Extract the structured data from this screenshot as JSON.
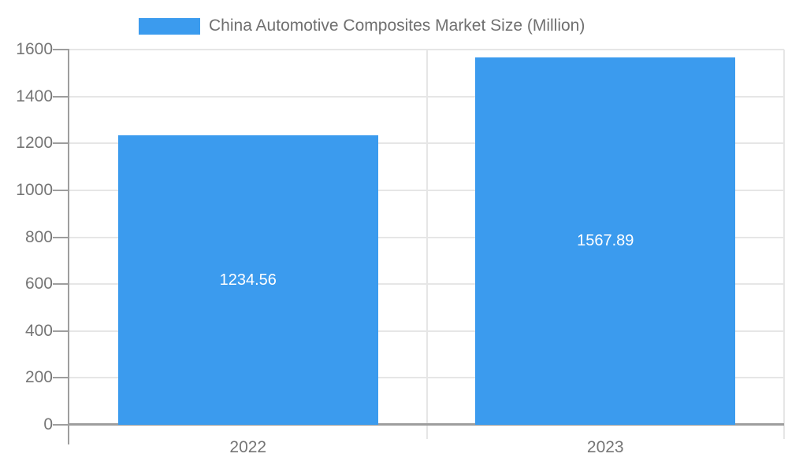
{
  "legend": {
    "label": "China Automotive Composites Market Size (Million)"
  },
  "chart_data": {
    "type": "bar",
    "title": "China Automotive Composites Market Size (Million)",
    "legend_position": "top",
    "categories": [
      "2022",
      "2023"
    ],
    "series": [
      {
        "name": "China Automotive Composites Market Size (Million)",
        "values": [
          1234.56,
          1567.89
        ]
      }
    ],
    "value_labels": [
      "1234.56",
      "1567.89"
    ],
    "xlabel": "",
    "ylabel": "",
    "ylim": [
      0,
      1600
    ],
    "ytick_interval": 200,
    "ytick_labels": [
      "0",
      "200",
      "400",
      "600",
      "800",
      "1000",
      "1200",
      "1400",
      "1600"
    ],
    "grid": true,
    "colors": {
      "bar": "#3B9BEE",
      "grid_line": "#e6e6e6",
      "axis_line": "#9e9e9e",
      "tick_text": "#757575",
      "legend_text": "#707070",
      "value_label_text": "#ffffff",
      "background": "#ffffff"
    }
  }
}
